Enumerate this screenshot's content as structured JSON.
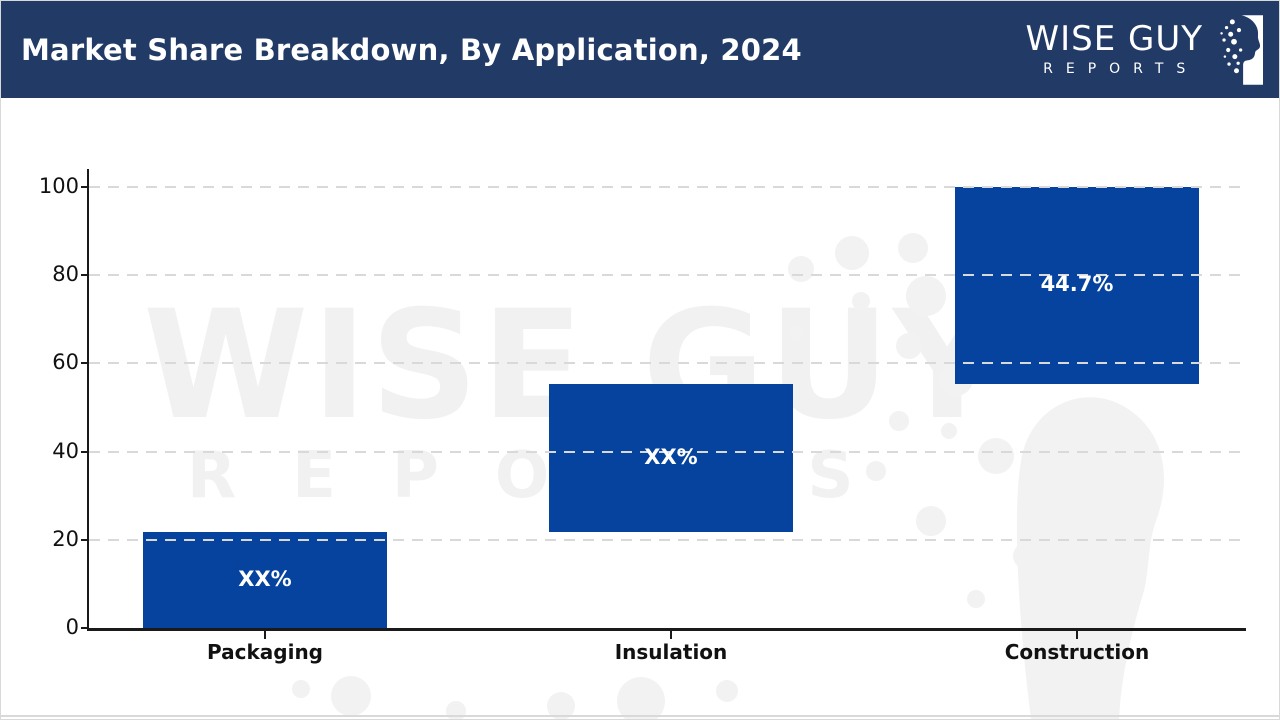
{
  "header": {
    "title": "Market Share Breakdown, By Application, 2024",
    "logo": {
      "line1": "WISE GUY",
      "line2": "REPORTS",
      "icon": "dotted-face-profile-icon"
    }
  },
  "watermark": {
    "line1": "WISE GUY",
    "line2": "REPORTS",
    "icon": "dotted-face-profile-watermark"
  },
  "chart_data": {
    "type": "bar",
    "subtype": "waterfall-floating-bars",
    "title": "Market Share Breakdown, By Application, 2024",
    "categories": [
      "Packaging",
      "Insulation",
      "Construction"
    ],
    "series": [
      {
        "name": "Packaging",
        "start": 0,
        "end": 21.7,
        "label": "XX%"
      },
      {
        "name": "Insulation",
        "start": 21.7,
        "end": 55.4,
        "label": "XX%"
      },
      {
        "name": "Construction",
        "start": 55.4,
        "end": 100,
        "label": "44.7%"
      }
    ],
    "yticks": [
      0,
      20,
      40,
      60,
      80,
      100
    ],
    "ylim": [
      0,
      104
    ],
    "xlabel": "",
    "ylabel": "",
    "legend": "none",
    "grid": "horizontal-dashed",
    "bar_color": "#05439E",
    "label_color": "#ffffff",
    "axis_color": "#1a1a1a",
    "gridline_color": "#d9d9d9",
    "header_color": "#223A66",
    "watermark_color": "#f1f1f1"
  }
}
